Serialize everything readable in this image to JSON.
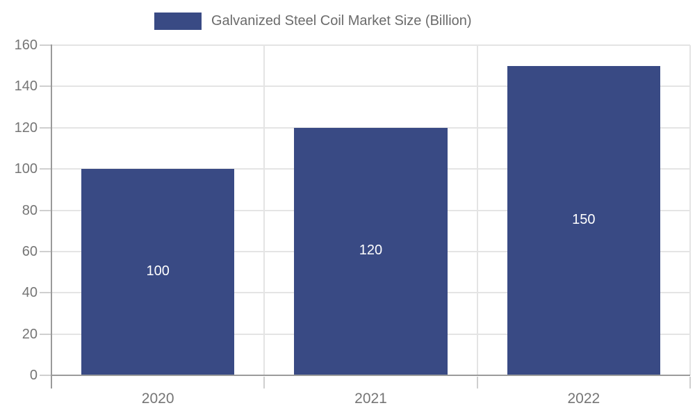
{
  "chart_data": {
    "type": "bar",
    "title": "",
    "series_name": "Galvanized Steel Coil Market Size (Billion)",
    "categories": [
      "2020",
      "2021",
      "2022"
    ],
    "values": [
      100,
      120,
      150
    ],
    "data_labels": [
      "100",
      "120",
      "150"
    ],
    "ylabel": "",
    "xlabel": "",
    "ylim": [
      0,
      160
    ],
    "ytick_step": 20,
    "ytick_labels": [
      "0",
      "20",
      "40",
      "60",
      "80",
      "100",
      "120",
      "140",
      "160"
    ],
    "grid": true,
    "legend_position": "top"
  },
  "colors": {
    "bar_fill": "#394A84",
    "gridline": "#e4e4e4",
    "axis_line": "#9a9a9a",
    "tick": "#cfcfcf",
    "axis_text": "#757575",
    "legend_text": "#6b6b6b",
    "data_label_text": "#ffffff",
    "background": "#ffffff"
  }
}
